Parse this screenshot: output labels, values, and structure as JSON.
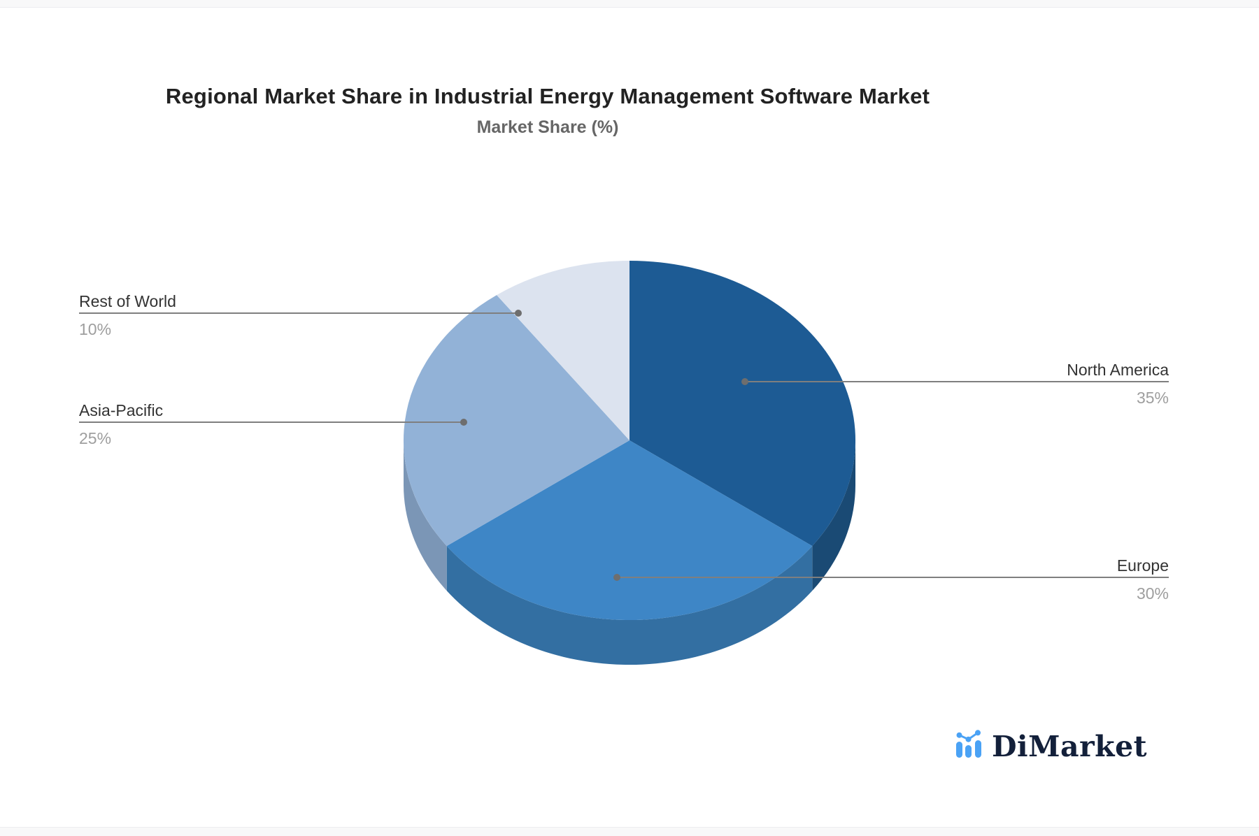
{
  "header": {
    "title": "Regional Market Share in Industrial Energy Management Software Market",
    "subtitle": "Market Share (%)"
  },
  "chart_data": {
    "type": "pie",
    "style": "3d-pie",
    "title": "Regional Market Share in Industrial Energy Management Software Market",
    "subtitle": "Market Share (%)",
    "unit": "%",
    "rotation": "clockwise-from-top",
    "legend": "none",
    "slices": [
      {
        "label": "North America",
        "value": 35,
        "display": "35%",
        "color": "#1d5b94",
        "side_color": "#1a4a74",
        "callout_side": "right"
      },
      {
        "label": "Europe",
        "value": 30,
        "display": "30%",
        "color": "#3e86c6",
        "side_color": "#336fa2",
        "callout_side": "right"
      },
      {
        "label": "Asia-Pacific",
        "value": 25,
        "display": "25%",
        "color": "#92b2d7",
        "side_color": "#7b96b6",
        "callout_side": "left"
      },
      {
        "label": "Rest of World",
        "value": 10,
        "display": "10%",
        "color": "#dce3ef",
        "side_color": "#c3cbda",
        "callout_side": "left"
      }
    ],
    "label_text_color": "#333333",
    "percent_text_color": "#9e9e9e",
    "connector_color": "#7f7f7f"
  },
  "branding": {
    "name": "DiMarket",
    "icon": "bar-chart-trend-icon",
    "icon_color": "#4aa2f5",
    "name_color": "#13203a"
  }
}
